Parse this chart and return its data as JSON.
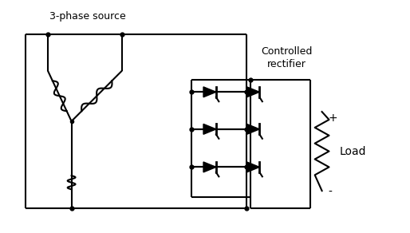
{
  "bg_color": "#ffffff",
  "title": "3-phase source",
  "label_controlled": "Controlled\nrectifier",
  "label_load": "Load",
  "label_plus": "+",
  "label_minus": "-",
  "figsize": [
    5.14,
    2.92
  ],
  "dpi": 100
}
